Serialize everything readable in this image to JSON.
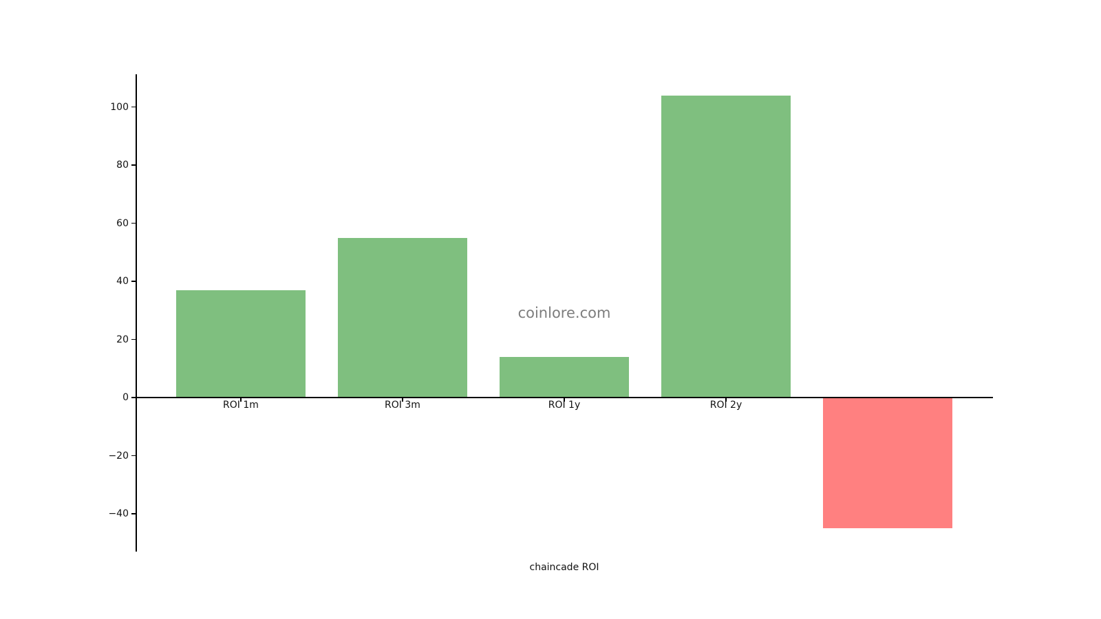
{
  "figure": {
    "background": "#ffffff"
  },
  "chart_data": {
    "type": "bar",
    "title": "",
    "xlabel": "chaincade ROI",
    "ylabel": "",
    "watermark": "coinlore.com",
    "categories": [
      "ROI 1m",
      "ROI 3m",
      "ROI 1y",
      "ROI 2y",
      ""
    ],
    "values": [
      37,
      55,
      14,
      104,
      -45
    ],
    "bar_colors": [
      "#7fbf7f",
      "#7fbf7f",
      "#7fbf7f",
      "#7fbf7f",
      "#ff8080"
    ],
    "positive_color": "#7fbf7f",
    "negative_color": "#ff8080",
    "axis_color": "#000000",
    "watermark_color": "#7d7d7d",
    "yticks": [
      100,
      80,
      60,
      40,
      20,
      0,
      -20,
      -40
    ],
    "ytick_labels": [
      "100",
      "80",
      "60",
      "40",
      "20",
      "0",
      "−20",
      "−40"
    ],
    "ylim": [
      -53,
      111.3
    ],
    "xlim": [
      -0.651,
      4.651
    ],
    "bar_width": 0.8,
    "grid": false,
    "legend_position": "none"
  }
}
